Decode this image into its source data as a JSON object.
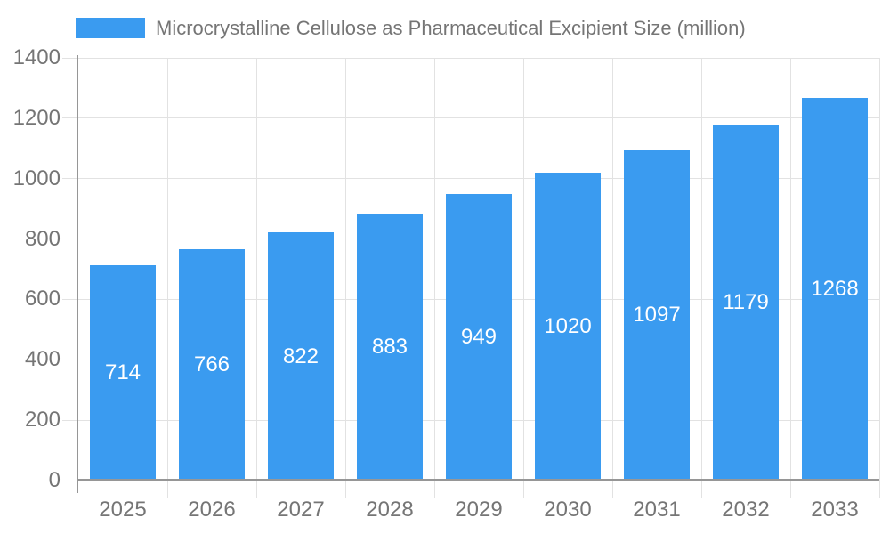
{
  "chart_data": {
    "type": "bar",
    "title": "Microcrystalline Cellulose as Pharmaceutical Excipient Size (million)",
    "categories": [
      "2025",
      "2026",
      "2027",
      "2028",
      "2029",
      "2030",
      "2031",
      "2032",
      "2033"
    ],
    "values": [
      714,
      766,
      822,
      883,
      949,
      1020,
      1097,
      1179,
      1268
    ],
    "xlabel": "",
    "ylabel": "",
    "ylim": [
      0,
      1400
    ],
    "yticks": [
      0,
      200,
      400,
      600,
      800,
      1000,
      1200,
      1400
    ],
    "grid": true,
    "legend_position": "top-left",
    "colors": {
      "bar": "#3A9BF0",
      "bar_label": "#FFFFFF",
      "axis_text": "#757575",
      "grid_line": "#E2E2E2",
      "axis_line": "#969696"
    }
  }
}
